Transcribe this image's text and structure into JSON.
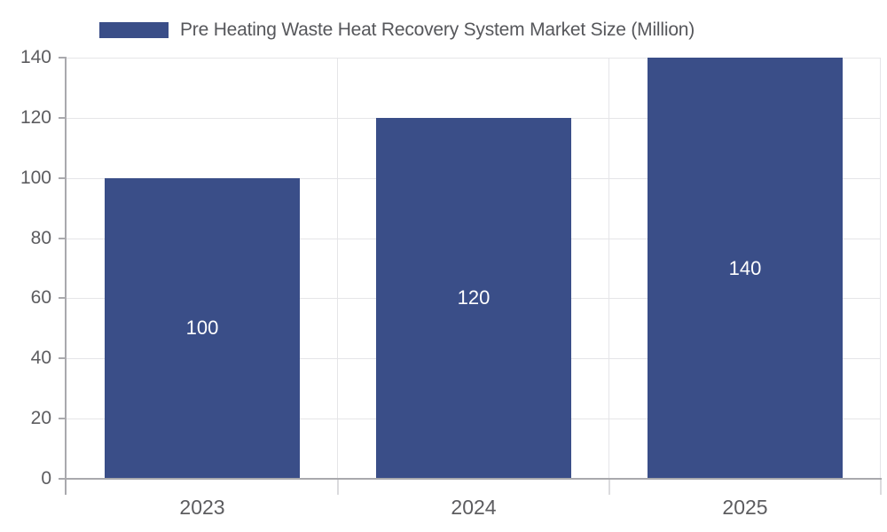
{
  "legend": {
    "label": "Pre Heating Waste Heat Recovery System Market Size (Million)"
  },
  "chart_data": {
    "type": "bar",
    "title": "Pre Heating Waste Heat Recovery System Market Size (Million)",
    "categories": [
      "2023",
      "2024",
      "2025"
    ],
    "series": [
      {
        "name": "Pre Heating Waste Heat Recovery System Market Size (Million)",
        "values": [
          100,
          120,
          140
        ]
      }
    ],
    "value_labels": [
      "100",
      "120",
      "140"
    ],
    "xlabel": "",
    "ylabel": "",
    "ylim": [
      0,
      140
    ],
    "yticks": [
      0,
      20,
      40,
      60,
      80,
      100,
      120,
      140
    ],
    "grid": true,
    "legend_position": "top-left",
    "bar_slot_fraction": 0.7222,
    "colors": {
      "bar": "#3A4E88",
      "grid": "#E5E5E8",
      "axis": "#A9A9AD",
      "x_tick_mark": "#DBDBDE",
      "tick_text": "#5C5C5F",
      "legend_text": "#56575B",
      "value_text": "#FFFFFF",
      "background": "#FFFFFF"
    }
  }
}
